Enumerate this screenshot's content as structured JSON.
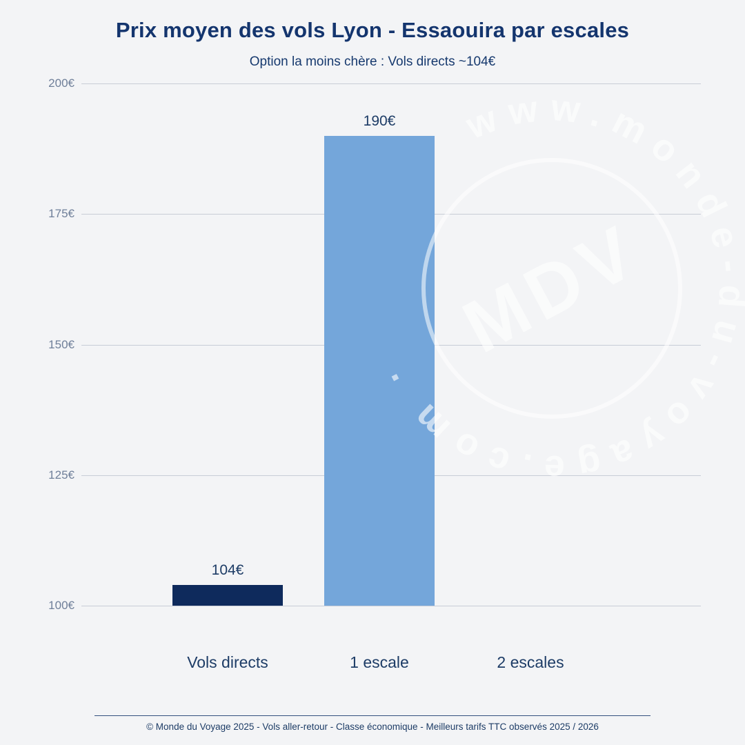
{
  "header": {
    "title": "Prix moyen des vols Lyon - Essaouira par escales",
    "subtitle": "Option la moins chère : Vols directs ~104€"
  },
  "chart_data": {
    "type": "bar",
    "title": "Prix moyen des vols Lyon - Essaouira par escales",
    "subtitle": "Option la moins chère : Vols directs ~104€",
    "categories": [
      "Vols directs",
      "1 escale",
      "2 escales"
    ],
    "values": [
      104,
      190,
      null
    ],
    "value_labels": [
      "104€",
      "190€",
      ""
    ],
    "bar_colors": [
      "#0e2a5c",
      "#74a6da",
      null
    ],
    "ylim": [
      100,
      200
    ],
    "yticks": [
      100,
      125,
      150,
      175,
      200
    ],
    "ytick_labels": [
      "100€",
      "125€",
      "150€",
      "175€",
      "200€"
    ],
    "grid": true,
    "legend": "none",
    "currency": "€"
  },
  "watermark": {
    "circle_text": "www.monde-du-voyage.com ·",
    "center_text": "MDV"
  },
  "footer": {
    "text": "© Monde du Voyage 2025 - Vols aller-retour - Classe économique - Meilleurs tarifs TTC observés 2025 / 2026"
  },
  "colors": {
    "background": "#f3f4f6",
    "title": "#14356e",
    "grid": "#c7ccd6",
    "tick_label": "#6f7f99",
    "bar_dark": "#0e2a5c",
    "bar_light": "#74a6da",
    "category_label": "#1d3c66",
    "footer_text": "#1d3c66",
    "watermark": "rgba(255,255,255,0.55)"
  }
}
